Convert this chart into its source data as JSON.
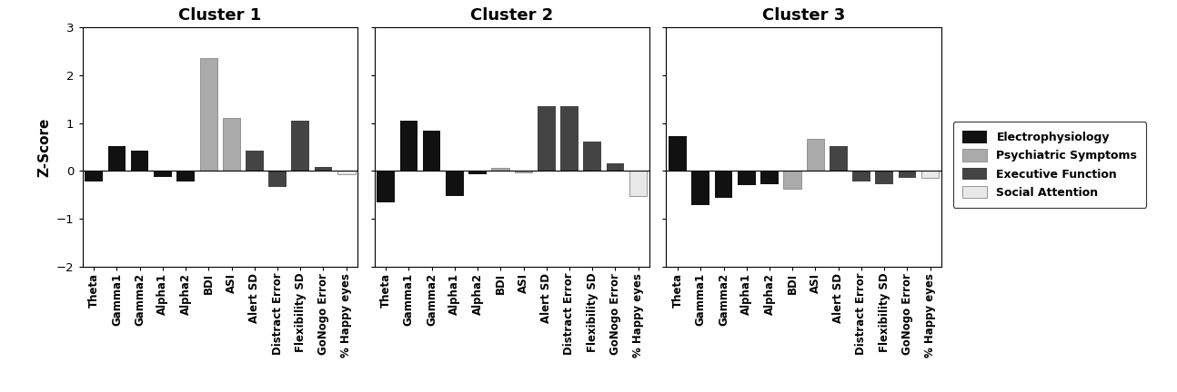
{
  "categories": [
    "Theta",
    "Gamma1",
    "Gamma2",
    "Alpha1",
    "Alpha2",
    "BDI",
    "ASI",
    "Alert SD",
    "Distract Error",
    "Flexibility SD",
    "GoNogo Error",
    "% Happy eyes"
  ],
  "cluster_titles": [
    "Cluster 1",
    "Cluster 2",
    "Cluster 3"
  ],
  "colors": {
    "Electrophysiology": "#111111",
    "Psychiatric Symptoms": "#aaaaaa",
    "Executive Function": "#444444",
    "Social Attention": "#e8e8e8"
  },
  "category_groups": {
    "Theta": "Electrophysiology",
    "Gamma1": "Electrophysiology",
    "Gamma2": "Electrophysiology",
    "Alpha1": "Electrophysiology",
    "Alpha2": "Electrophysiology",
    "BDI": "Psychiatric Symptoms",
    "ASI": "Psychiatric Symptoms",
    "Alert SD": "Executive Function",
    "Distract Error": "Executive Function",
    "Flexibility SD": "Executive Function",
    "GoNogo Error": "Executive Function",
    "% Happy eyes": "Social Attention"
  },
  "cluster1": [
    -0.22,
    0.52,
    0.42,
    -0.12,
    -0.22,
    2.35,
    1.1,
    0.42,
    -0.33,
    1.05,
    0.08,
    -0.07
  ],
  "cluster2": [
    -0.65,
    1.05,
    0.85,
    -0.52,
    -0.06,
    0.06,
    -0.04,
    1.35,
    1.35,
    0.62,
    0.15,
    -0.52
  ],
  "cluster3": [
    0.72,
    -0.72,
    -0.57,
    -0.3,
    -0.27,
    -0.38,
    0.68,
    0.52,
    -0.22,
    -0.27,
    -0.15,
    -0.15
  ],
  "ylim": [
    -2,
    3
  ],
  "yticks": [
    -2,
    -1,
    0,
    1,
    2,
    3
  ],
  "ylabel": "Z-Score",
  "legend_labels": [
    "Electrophysiology",
    "Psychiatric Symptoms",
    "Executive Function",
    "Social Attention"
  ],
  "legend_colors": [
    "#111111",
    "#aaaaaa",
    "#444444",
    "#e8e8e8"
  ],
  "background_color": "#ffffff",
  "title_fontsize": 13,
  "tick_fontsize": 8.5,
  "ylabel_fontsize": 11
}
